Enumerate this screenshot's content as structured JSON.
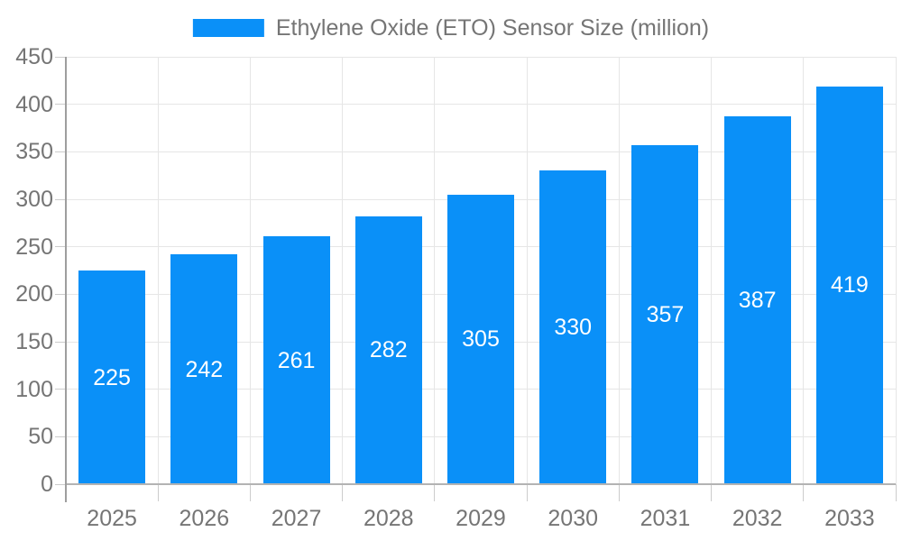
{
  "legend": {
    "label": "Ethylene Oxide (ETO) Sensor Size (million)"
  },
  "colors": {
    "bar": "#0a90f8",
    "grid": "#e6e6e6",
    "axis_line": "#9e9e9e",
    "baseline": "#b3b3b3",
    "tick": "#cccccc",
    "axis_text": "#757575",
    "value_text": "#ffffff",
    "background": "#ffffff"
  },
  "chart_data": {
    "type": "bar",
    "title": "",
    "categories": [
      "2025",
      "2026",
      "2027",
      "2028",
      "2029",
      "2030",
      "2031",
      "2032",
      "2033"
    ],
    "series": [
      {
        "name": "Ethylene Oxide (ETO) Sensor Size (million)",
        "values": [
          225,
          242,
          261,
          282,
          305,
          330,
          357,
          387,
          419
        ]
      }
    ],
    "xlabel": "",
    "ylabel": "",
    "ylim": [
      0,
      450
    ],
    "ytick_step": 50,
    "yticks": [
      0,
      50,
      100,
      150,
      200,
      250,
      300,
      350,
      400,
      450
    ],
    "grid": true,
    "legend_position": "top",
    "value_labels": "inside-center"
  }
}
